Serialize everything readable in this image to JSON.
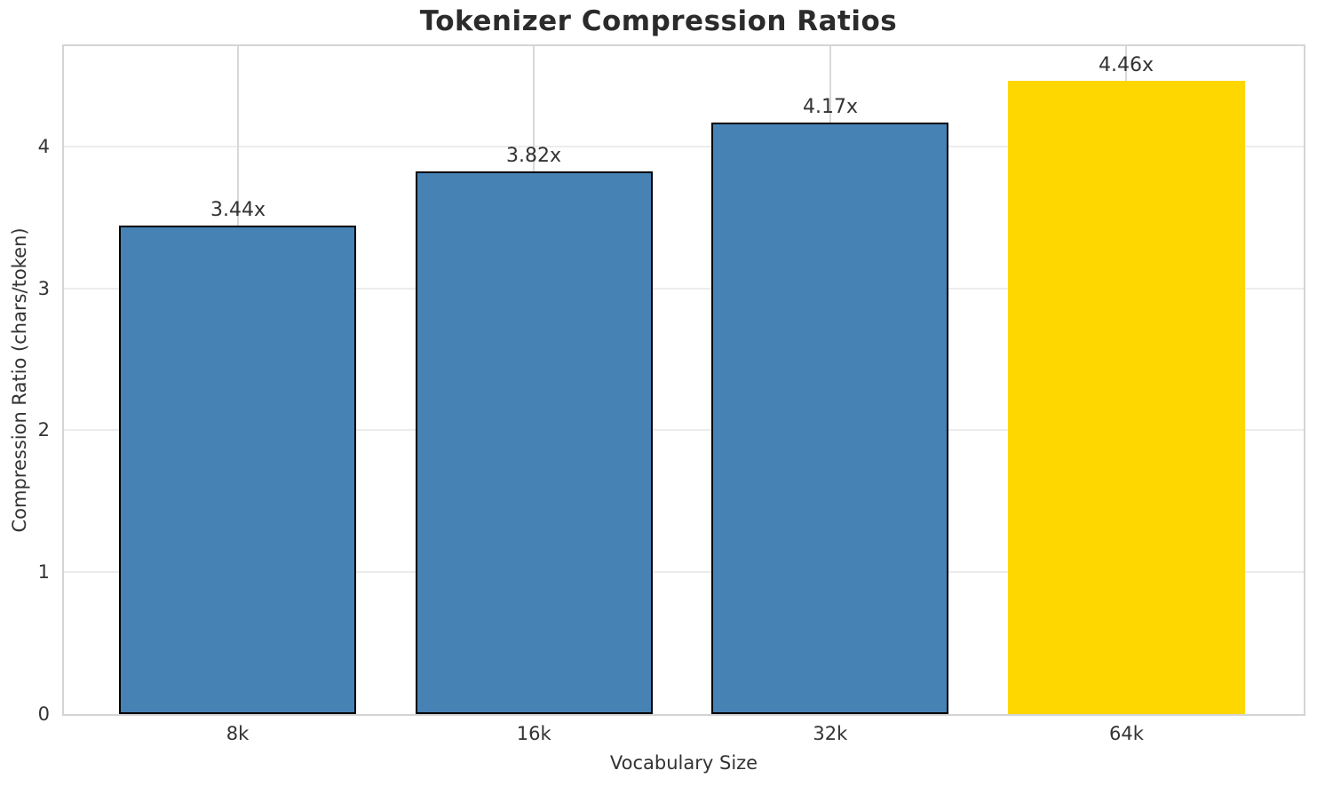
{
  "title": "Tokenizer Compression Ratios",
  "chart_data": {
    "type": "bar",
    "title": "Tokenizer Compression Ratios",
    "categories": [
      "8k",
      "16k",
      "32k",
      "64k"
    ],
    "values": [
      3.44,
      3.82,
      4.17,
      4.46
    ],
    "bar_labels": [
      "3.44x",
      "3.82x",
      "4.17x",
      "4.46x"
    ],
    "xlabel": "Vocabulary Size",
    "ylabel": "Compression Ratio (chars/token)",
    "yticks": [
      0,
      1,
      2,
      3,
      4
    ],
    "ylim": [
      0,
      4.705
    ],
    "xlim": [
      -0.586,
      3.598
    ],
    "bar_width_frac": 0.8,
    "bar_colors": [
      "#4682b4",
      "#4682b4",
      "#4682b4",
      "#ffd700"
    ],
    "bar_edge_colors": [
      "#000000",
      "#000000",
      "#000000",
      "none"
    ],
    "grid": true,
    "legend": "none",
    "highlight_color": "#ffd700",
    "base_color": "#4682b4"
  }
}
